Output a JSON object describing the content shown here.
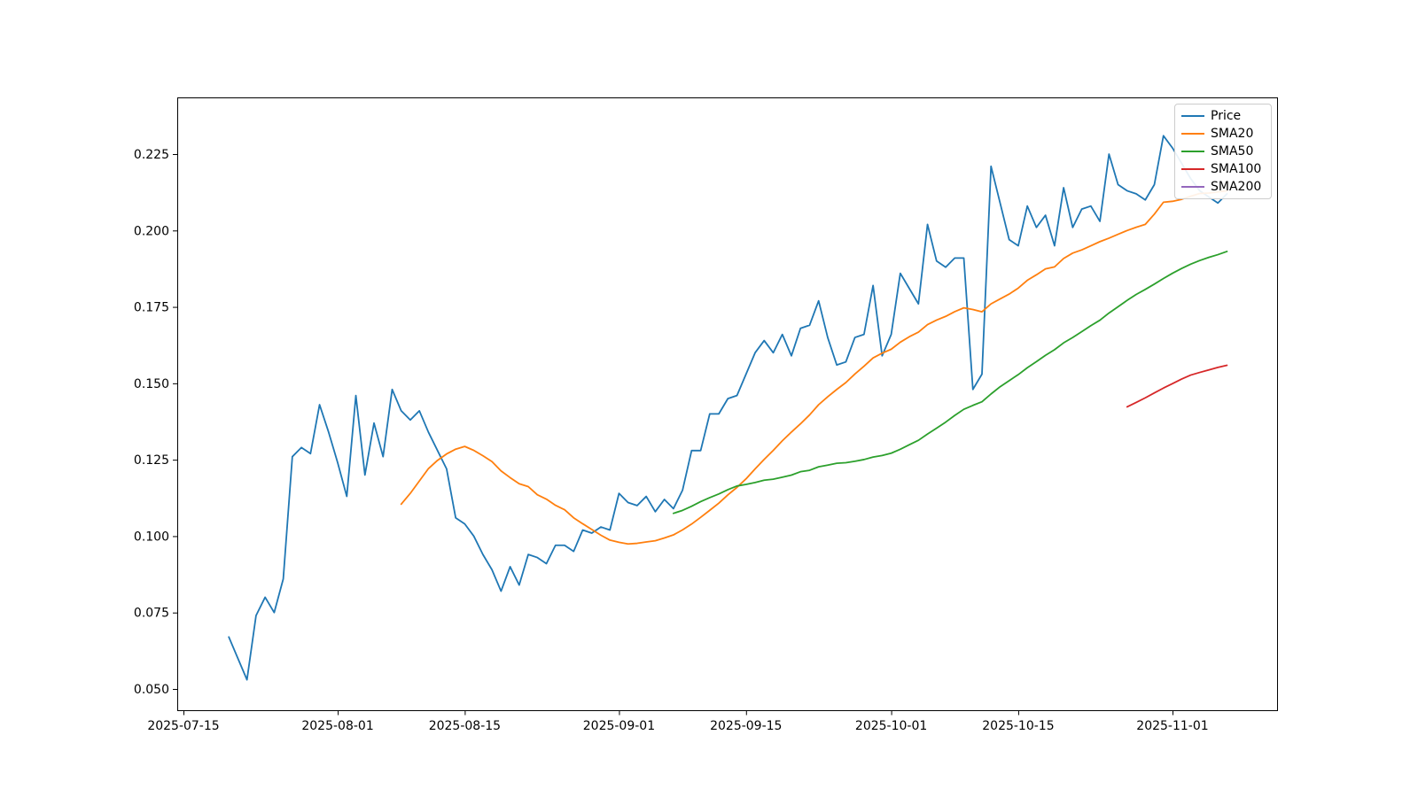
{
  "figure": {
    "background": "#ffffff",
    "border_color": "#000000"
  },
  "legend": {
    "position": "upper right",
    "items": [
      {
        "label": "Price",
        "color": "#1f77b4"
      },
      {
        "label": "SMA20",
        "color": "#ff7f0e"
      },
      {
        "label": "SMA50",
        "color": "#2ca02c"
      },
      {
        "label": "SMA100",
        "color": "#d62728"
      },
      {
        "label": "SMA200",
        "color": "#9467bd"
      }
    ]
  },
  "chart_data": {
    "type": "line",
    "title": "",
    "xlabel": "",
    "ylabel": "",
    "grid": false,
    "legend_position": "upper right",
    "frequency": "daily",
    "x_start_date": "2025-07-20",
    "x_end_date": "2025-11-07",
    "x_axis_anchor_date": "2025-07-15",
    "x_tick_labels": [
      "2025-07-15",
      "2025-08-01",
      "2025-08-15",
      "2025-09-01",
      "2025-09-15",
      "2025-10-01",
      "2025-10-15",
      "2025-11-01"
    ],
    "y_ticks": [
      0.05,
      0.075,
      0.1,
      0.125,
      0.15,
      0.175,
      0.2,
      0.225
    ],
    "y_tick_labels": [
      "0.050",
      "0.075",
      "0.100",
      "0.125",
      "0.150",
      "0.175",
      "0.200",
      "0.225"
    ],
    "ylim": [
      0.0431,
      0.2435
    ],
    "xlim_days_from_anchor": [
      -0.7,
      120.5
    ],
    "series": [
      {
        "name": "Price",
        "color": "#1f77b4",
        "kind": "raw",
        "values": [
          0.067,
          0.06,
          0.053,
          0.074,
          0.08,
          0.075,
          0.086,
          0.126,
          0.129,
          0.127,
          0.143,
          0.134,
          0.124,
          0.113,
          0.146,
          0.12,
          0.137,
          0.126,
          0.148,
          0.141,
          0.138,
          0.141,
          0.134,
          0.128,
          0.122,
          0.106,
          0.104,
          0.1,
          0.094,
          0.089,
          0.082,
          0.09,
          0.084,
          0.094,
          0.093,
          0.091,
          0.097,
          0.097,
          0.095,
          0.102,
          0.101,
          0.103,
          0.102,
          0.114,
          0.111,
          0.11,
          0.113,
          0.108,
          0.112,
          0.109,
          0.115,
          0.128,
          0.128,
          0.14,
          0.14,
          0.145,
          0.146,
          0.153,
          0.16,
          0.164,
          0.16,
          0.166,
          0.159,
          0.168,
          0.169,
          0.177,
          0.165,
          0.156,
          0.157,
          0.165,
          0.166,
          0.182,
          0.159,
          0.166,
          0.186,
          0.181,
          0.176,
          0.202,
          0.19,
          0.188,
          0.191,
          0.191,
          0.148,
          0.153,
          0.221,
          0.209,
          0.197,
          0.195,
          0.208,
          0.201,
          0.205,
          0.195,
          0.214,
          0.201,
          0.207,
          0.208,
          0.203,
          0.225,
          0.215,
          0.213,
          0.212,
          0.21,
          0.215,
          0.231,
          0.227,
          0.222,
          0.217,
          0.213,
          0.211,
          0.209,
          0.212
        ]
      },
      {
        "name": "SMA20",
        "color": "#ff7f0e",
        "kind": "sma",
        "window": 20
      },
      {
        "name": "SMA50",
        "color": "#2ca02c",
        "kind": "sma",
        "window": 50
      },
      {
        "name": "SMA100",
        "color": "#d62728",
        "kind": "sma",
        "window": 100
      },
      {
        "name": "SMA200",
        "color": "#9467bd",
        "kind": "sma",
        "window": 200
      }
    ]
  }
}
